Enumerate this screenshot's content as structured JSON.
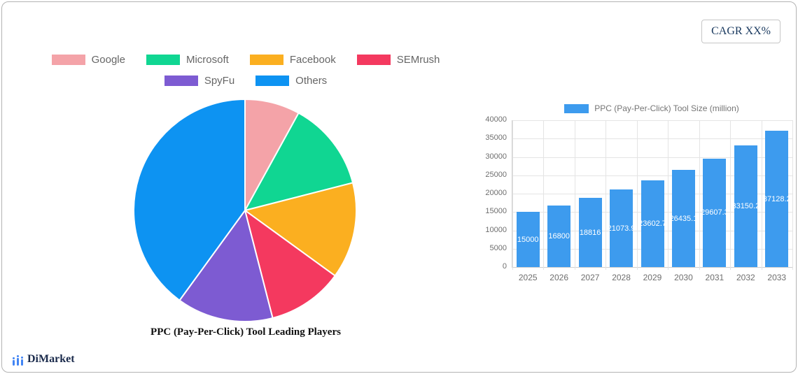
{
  "badge": {
    "label": "CAGR XX%"
  },
  "brand": {
    "name": "DiMarket",
    "icon_color": "#4285f4",
    "text_color": "#1b2b4c"
  },
  "chart_data": [
    {
      "type": "pie",
      "title": "PPC (Pay-Per-Click) Tool Leading Players",
      "legend_position": "top",
      "segments": [
        {
          "label": "Google",
          "value": 8,
          "color": "#f4a3a8"
        },
        {
          "label": "Microsoft",
          "value": 13,
          "color": "#10d692"
        },
        {
          "label": "Facebook",
          "value": 14,
          "color": "#fbaf20"
        },
        {
          "label": "SEMrush",
          "value": 11,
          "color": "#f4395f"
        },
        {
          "label": "SpyFu",
          "value": 14,
          "color": "#7d5bd2"
        },
        {
          "label": "Others",
          "value": 40,
          "color": "#0d93f2"
        }
      ]
    },
    {
      "type": "bar",
      "legend": "PPC (Pay-Per-Click) Tool Size (million)",
      "legend_position": "top",
      "categories": [
        "2025",
        "2026",
        "2027",
        "2028",
        "2029",
        "2030",
        "2031",
        "2032",
        "2033"
      ],
      "values": [
        15000,
        16800,
        18816,
        21073.9,
        23602.7,
        26435.1,
        29607.3,
        33150.2,
        37128.2
      ],
      "bar_labels": [
        "15000",
        "16800",
        "18816",
        "21073.9",
        "23602.7",
        "26435.1",
        "29607.3",
        "33150.2",
        "37128.2"
      ],
      "bar_color": "#3d9bee",
      "value_label_color": "#ffffff",
      "ylim": [
        0,
        40000
      ],
      "yticks": [
        0,
        5000,
        10000,
        15000,
        20000,
        25000,
        30000,
        35000,
        40000
      ],
      "grid": true
    }
  ]
}
